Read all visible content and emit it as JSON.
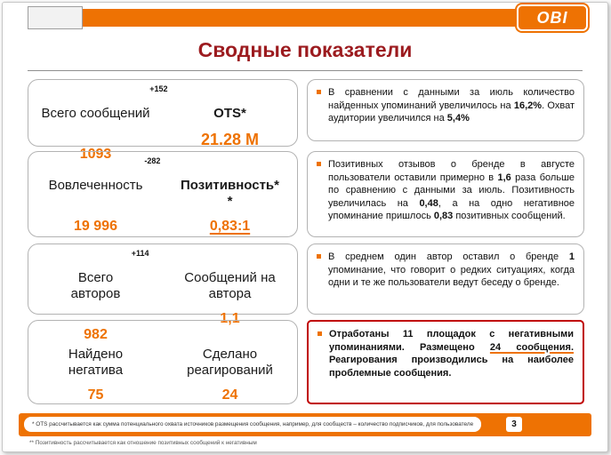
{
  "colors": {
    "orange": "#EE7203",
    "title_red": "#9C1B1F",
    "alert_red": "#C00000"
  },
  "header": {
    "logo_text": "OBI",
    "title": "Сводные показатели"
  },
  "rows": [
    {
      "m1": {
        "label": "Всего сообщений",
        "delta": "+152",
        "value": "1093"
      },
      "m2": {
        "label": "OTS*",
        "value": "21.28 М"
      },
      "note": [
        {
          "t": "В сравнении с данными за июль количество найденных упоминаний увеличилось на "
        },
        {
          "t": "16,2%",
          "b": true
        },
        {
          "t": ". Охват аудитории увеличился на "
        },
        {
          "t": "5,4%",
          "b": true
        }
      ]
    },
    {
      "m1": {
        "label": "Вовлеченность",
        "delta": "-282",
        "value": "19 996"
      },
      "m2": {
        "label": "Позитивность*\n*",
        "value": "0,83:1"
      },
      "note": [
        {
          "t": "Позитивных отзывов о бренде в августе пользователи оставили примерно в "
        },
        {
          "t": "1,6",
          "b": true
        },
        {
          "t": " раза больше по сравнению с данными за июль. Позитивность увеличилась на "
        },
        {
          "t": "0,48",
          "b": true
        },
        {
          "t": ", а на одно негативное упоминание пришлось "
        },
        {
          "t": "0,83",
          "b": true
        },
        {
          "t": " позитивных сообщений."
        }
      ]
    },
    {
      "m1": {
        "label": "Всего авторов",
        "delta": "+114",
        "value": "982"
      },
      "m2": {
        "label": "Сообщений на автора",
        "value": "1,1"
      },
      "note": [
        {
          "t": "В среднем один автор оставил о бренде "
        },
        {
          "t": "1",
          "b": true
        },
        {
          "t": " упоминание, что говорит о редких ситуациях, когда одни и те же пользователи ведут беседу о бренде."
        }
      ]
    },
    {
      "m1": {
        "label": "Найдено негатива",
        "value": "75"
      },
      "m2": {
        "label": "Сделано реагирований",
        "value": "24"
      },
      "note": [
        {
          "t": "Отработаны ",
          "b": true
        },
        {
          "t": "11",
          "b": true
        },
        {
          "t": " площадок с негативными упоминаниями. Размещено ",
          "b": true
        },
        {
          "t": "24 сообщения.",
          "b": true,
          "u": true
        },
        {
          "t": " Реагирования производились на наиболее проблемные сообщения.",
          "b": true
        }
      ]
    }
  ],
  "footer": {
    "footnote1": "* OTS рассчитывается как сумма потенциального охвата источников размещения сообщения, например, для сообществ – количество подписчиков, для пользователей – количество их друзей",
    "footnote2": "** Позитивность рассчитывается как отношение позитивных сообщений к негативным",
    "page_number": "3"
  }
}
